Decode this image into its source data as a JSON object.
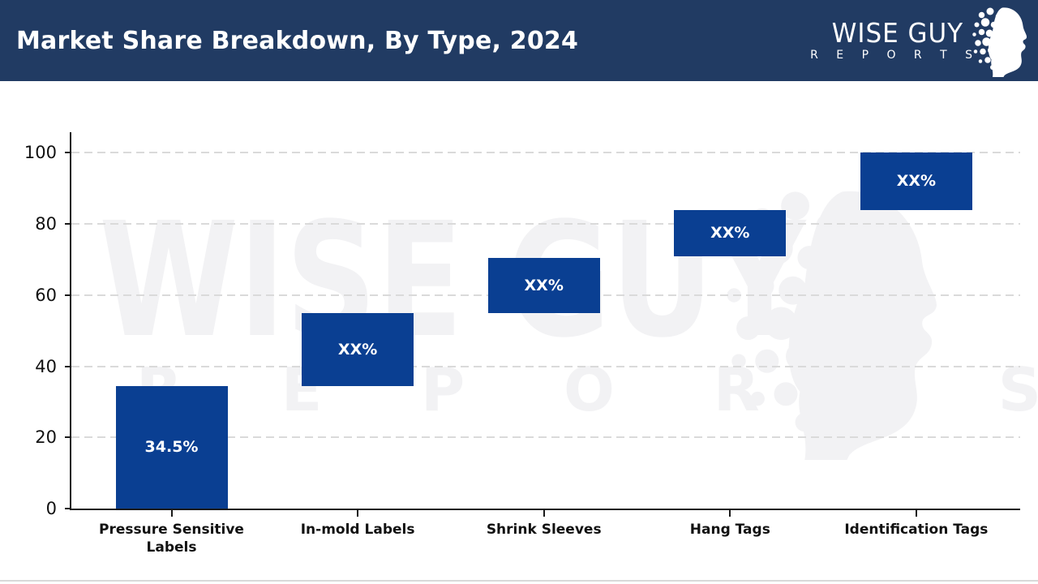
{
  "header": {
    "title": "Market Share Breakdown, By Type, 2024",
    "logo_line1": "WISE GUY",
    "logo_line2": "R E P O R T S",
    "bg_color": "#213b63"
  },
  "watermark": {
    "line1": "WISE GUY",
    "line2": "R E P O R T S"
  },
  "chart_data": {
    "type": "bar",
    "subtype": "waterfall",
    "title": "Market Share Breakdown, By Type, 2024",
    "categories": [
      "Pressure Sensitive Labels",
      "In-mold Labels",
      "Shrink Sleeves",
      "Hang Tags",
      "Identification Tags"
    ],
    "bar_labels": [
      "34.5%",
      "XX%",
      "XX%",
      "XX%",
      "XX%"
    ],
    "segments": [
      [
        0,
        34.5
      ],
      [
        34.5,
        55
      ],
      [
        55,
        70.5
      ],
      [
        71,
        84
      ],
      [
        84,
        100
      ]
    ],
    "approx_segment_sizes": [
      34.5,
      20.5,
      15.5,
      13,
      16
    ],
    "first_bar_value": "34.5%",
    "masked_value_text": "XX%",
    "ylim": [
      0,
      105
    ],
    "yticks": [
      0,
      20,
      40,
      60,
      80,
      100
    ],
    "grid": "horizontal-dashed",
    "legend": "none",
    "xlabel": "",
    "ylabel": "",
    "bar_color": "#0a3f92",
    "bar_label_color": "#ffffff",
    "axis_color": "#1a1a1a",
    "grid_color": "#dadada"
  }
}
